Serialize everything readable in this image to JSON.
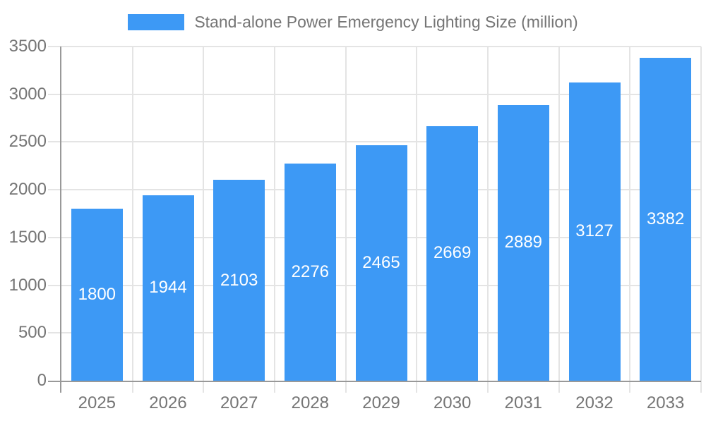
{
  "legend": {
    "label": "Stand-alone Power Emergency Lighting Size (million)"
  },
  "chart_data": {
    "type": "bar",
    "title": "Stand-alone Power Emergency Lighting Size (million)",
    "categories": [
      "2025",
      "2026",
      "2027",
      "2028",
      "2029",
      "2030",
      "2031",
      "2032",
      "2033"
    ],
    "values": [
      1800,
      1944,
      2103,
      2276,
      2465,
      2669,
      2889,
      3127,
      3382
    ],
    "xlabel": "",
    "ylabel": "",
    "ylim": [
      0,
      3500
    ],
    "yticks": [
      0,
      500,
      1000,
      1500,
      2000,
      2500,
      3000,
      3500
    ],
    "grid": true,
    "legend_position": "top",
    "value_labels": "inside-center",
    "colors": {
      "bar": "#3D99F5",
      "value_label": "#FFFFFF",
      "axis_text": "#757575",
      "axis_line": "#999999",
      "gridline": "#E4E4E4",
      "background": "#FFFFFF"
    }
  }
}
